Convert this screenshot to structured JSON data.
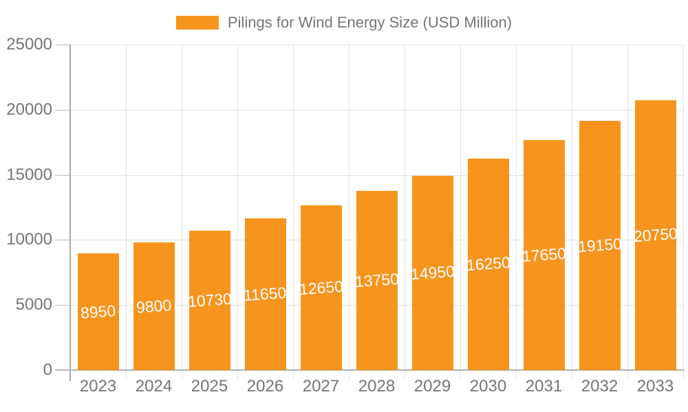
{
  "legend": {
    "label": "Pilings for Wind Energy Size (USD Million)",
    "swatch_color": "#f7941e"
  },
  "chart_data": {
    "type": "bar",
    "title": "Pilings for Wind Energy Size (USD Million)",
    "categories": [
      "2023",
      "2024",
      "2025",
      "2026",
      "2027",
      "2028",
      "2029",
      "2030",
      "2031",
      "2032",
      "2033"
    ],
    "values": [
      8950,
      9800,
      10730,
      11650,
      12650,
      13750,
      14950,
      16250,
      17650,
      19150,
      20750
    ],
    "series": [
      {
        "name": "Pilings for Wind Energy Size (USD Million)",
        "values": [
          8950,
          9800,
          10730,
          11650,
          12650,
          13750,
          14950,
          16250,
          17650,
          19150,
          20750
        ]
      }
    ],
    "xlabel": "",
    "ylabel": "",
    "ylim": [
      0,
      25000
    ],
    "yticks": [
      0,
      5000,
      10000,
      15000,
      20000,
      25000
    ],
    "bar_color": "#f7941e",
    "value_label_color": "#ffffff",
    "grid": true,
    "legend_position": "top-center"
  },
  "colors": {
    "background": "#ffffff",
    "grid_line": "#e3e3e3",
    "axis_line": "#b0b0b0",
    "tick_text": "#757575",
    "legend_text": "#757575"
  }
}
